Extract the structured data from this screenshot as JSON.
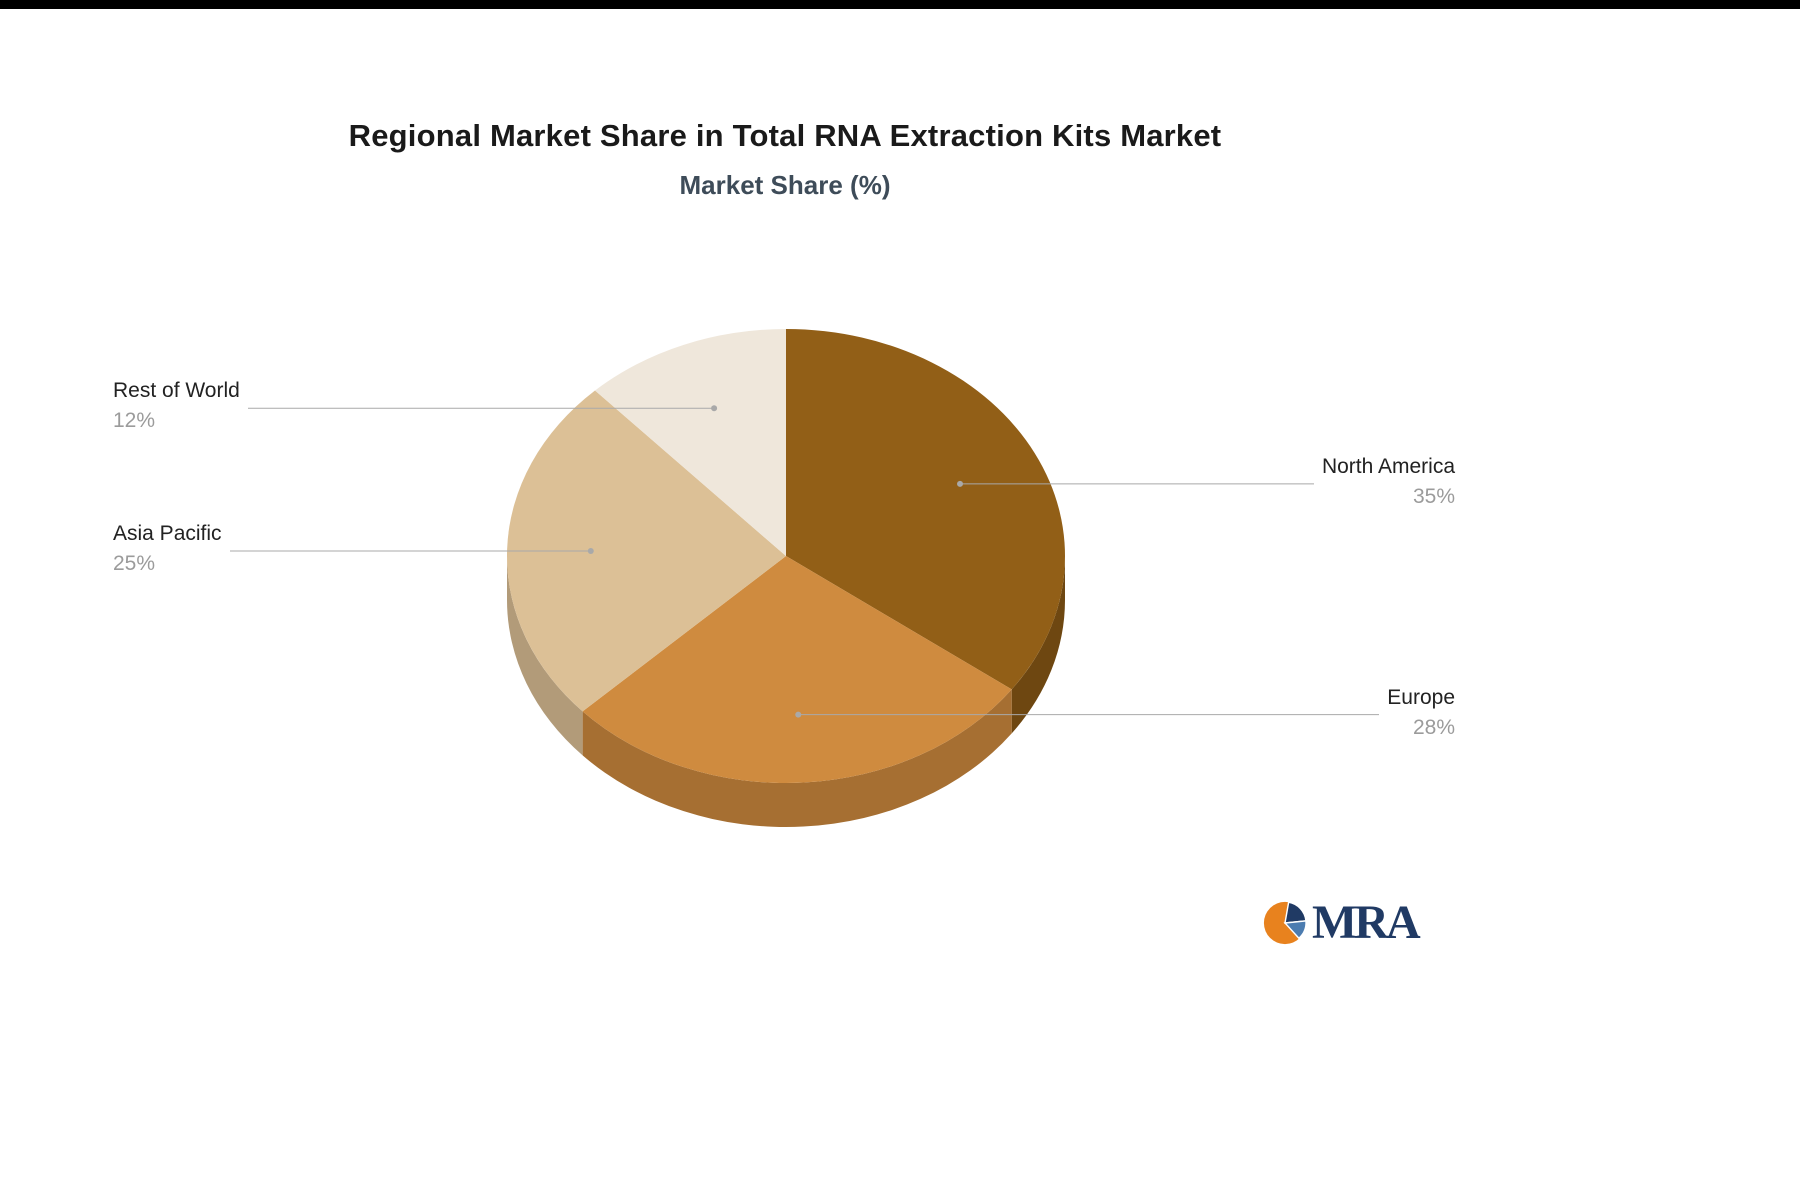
{
  "page": {
    "logo_text": "MRA",
    "background": "#ffffff"
  },
  "chart_data": {
    "type": "pie",
    "style": "3d",
    "title": "Regional Market Share in Total RNA Extraction Kits Market",
    "subtitle": "Market Share (%)",
    "unit": "%",
    "categories": [
      "North America",
      "Europe",
      "Asia Pacific",
      "Rest of World"
    ],
    "values": [
      35,
      28,
      25,
      12
    ],
    "labels_pct": [
      "35%",
      "28%",
      "25%",
      "12%"
    ],
    "colors": [
      "#925F17",
      "#CF8B3F",
      "#DCC096",
      "#EFE7DB"
    ],
    "side_colors": [
      "#6E4711",
      "#A66F32",
      "#B29B79",
      "#C9BFB0"
    ],
    "start_angle": 0,
    "direction": "clockwise",
    "legend": "none",
    "label_line_color": "#A9A9A9",
    "label_name_color": "#222222",
    "label_value_color": "#9B9B9B",
    "logo_colors": {
      "orange": "#E8821E",
      "navy": "#203A64",
      "blue": "#4C7CB0"
    }
  }
}
